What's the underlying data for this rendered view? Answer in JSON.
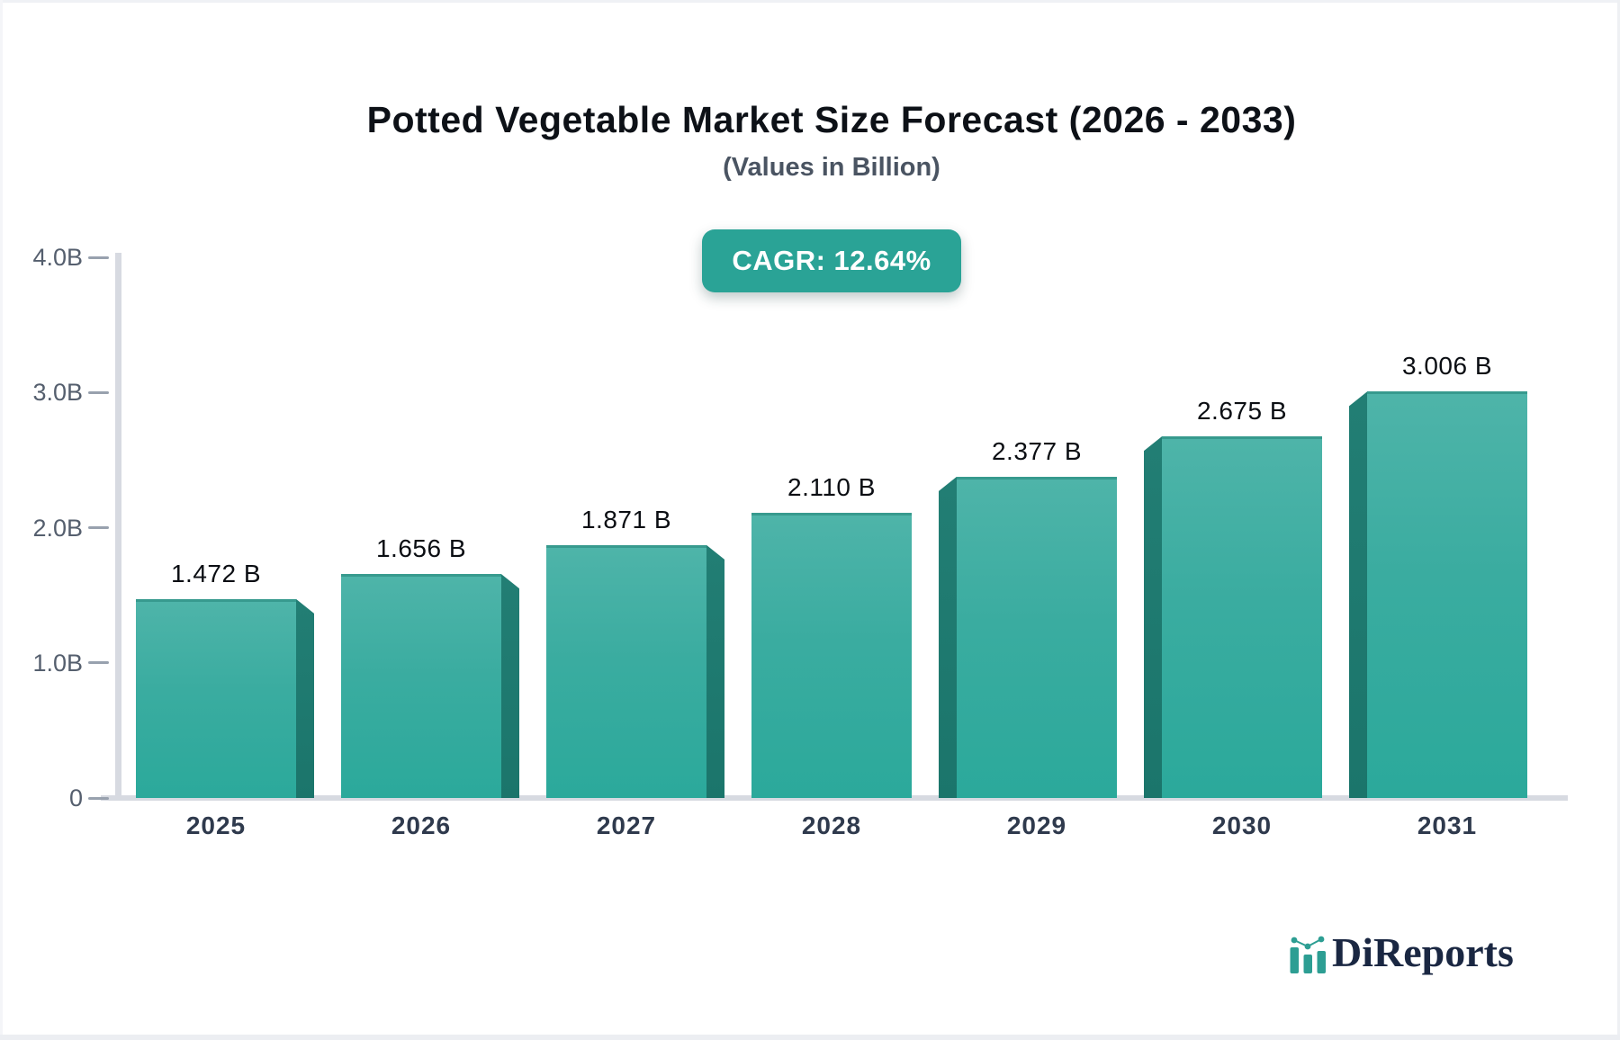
{
  "title": "Potted Vegetable Market Size Forecast (2026 - 2033)",
  "subtitle": "(Values in Billion)",
  "badge": {
    "label": "CAGR: 12.64%",
    "bg_color": "#2aa396"
  },
  "chart_data": {
    "type": "bar",
    "categories": [
      "2025",
      "2026",
      "2027",
      "2028",
      "2029",
      "2030",
      "2031"
    ],
    "values": [
      1.472,
      1.656,
      1.871,
      2.11,
      2.377,
      2.675,
      3.006
    ],
    "value_labels": [
      "1.472 B",
      "1.656 B",
      "1.871 B",
      "2.110 B",
      "2.377 B",
      "2.675 B",
      "3.006 B"
    ],
    "y_ticks": [
      {
        "label": "0",
        "value": 0
      },
      {
        "label": "1.0B",
        "value": 1
      },
      {
        "label": "2.0B",
        "value": 2
      },
      {
        "label": "3.0B",
        "value": 3
      },
      {
        "label": "4.0B",
        "value": 4
      }
    ],
    "ylim": [
      0,
      4
    ],
    "xlabel": "",
    "ylabel": "",
    "grid": false,
    "legend": "none",
    "bar_color_top": "#4eb4a9",
    "bar_color_bottom": "#2ba99b",
    "bar_side_color": "#1e7b71",
    "effect": "3d-bevel-away-from-center"
  },
  "logo": {
    "text": "DiReports",
    "icon": "mini-bar-chart-icon",
    "accent_color": "#2d9e93",
    "text_color": "#1a2742"
  }
}
